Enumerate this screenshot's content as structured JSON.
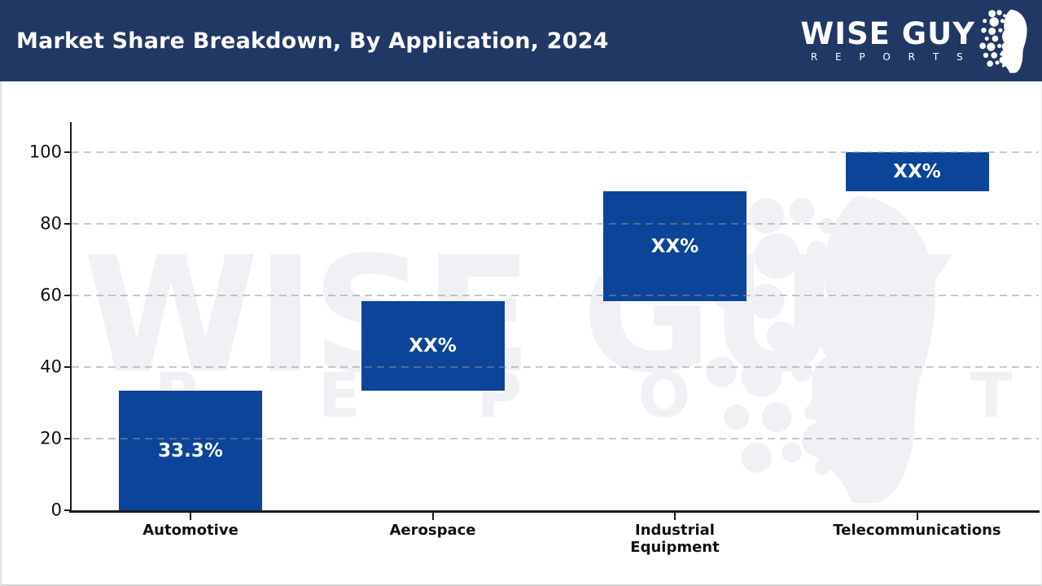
{
  "header": {
    "title": "Market Share Breakdown, By Application, 2024",
    "background_color": "#213764",
    "brand": {
      "name": "WISE GUY",
      "subtitle": "R E P O R T S"
    }
  },
  "watermark": {
    "line1": "WISE GUY",
    "line2": "R E P O R T S"
  },
  "chart_data": {
    "type": "bar",
    "subtype": "waterfall",
    "title": "Market Share Breakdown, By Application, 2024",
    "categories": [
      "Automotive",
      "Aerospace",
      "Industrial Equipment",
      "Telecommunications"
    ],
    "category_lines": [
      [
        "Automotive"
      ],
      [
        "Aerospace"
      ],
      [
        "Industrial",
        "Equipment"
      ],
      [
        "Telecommunications"
      ]
    ],
    "segments": [
      {
        "category": "Automotive",
        "start": 0,
        "end": 33.3,
        "label": "33.3%"
      },
      {
        "category": "Aerospace",
        "start": 33.3,
        "end": 58.3,
        "label": "XX%"
      },
      {
        "category": "Industrial Equipment",
        "start": 58.3,
        "end": 89.0,
        "label": "XX%"
      },
      {
        "category": "Telecommunications",
        "start": 89.0,
        "end": 100,
        "label": "XX%"
      }
    ],
    "yticks": [
      0,
      20,
      40,
      60,
      80,
      100
    ],
    "ylim": [
      0,
      100
    ],
    "xlabel": "",
    "ylabel": "",
    "grid": "horizontal dashed gridlines at each ytick, drawn over bars",
    "legend": "none",
    "bar_color": "#0c4499",
    "bar_label_color": "#ffffff",
    "gridline_color": "#d9d9d9",
    "axis_color": "#1a1a1a"
  }
}
